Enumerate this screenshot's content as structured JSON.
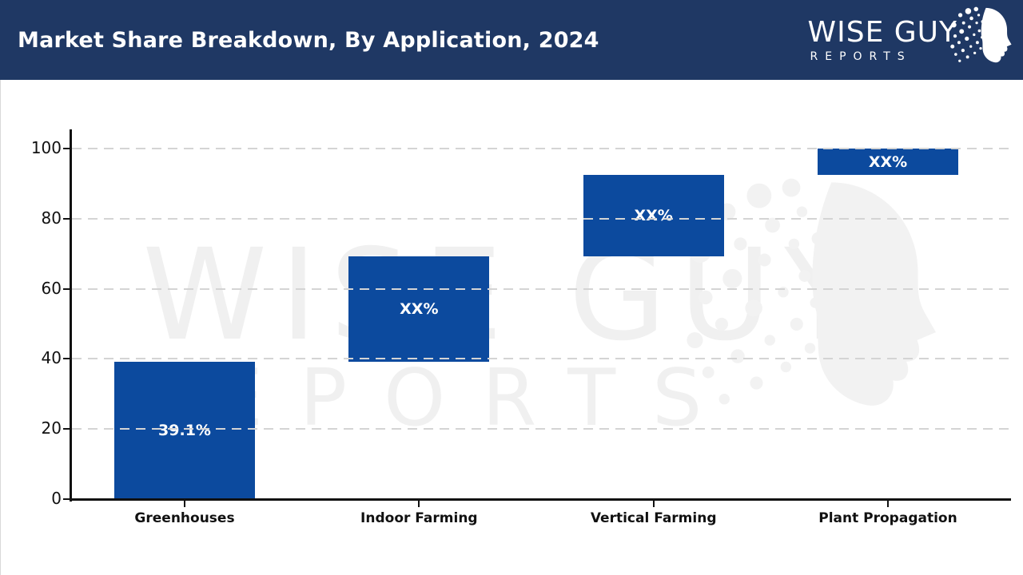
{
  "header": {
    "title": "Market Share Breakdown, By Application, 2024",
    "logo": {
      "wordmark": "WISE GUY",
      "subtext": "REPORTS"
    }
  },
  "watermark": {
    "line1": "WISE GUY",
    "line2": "REPORTS"
  },
  "chart_data": {
    "type": "bar",
    "subtype": "waterfall",
    "title": "Market Share Breakdown, By Application, 2024",
    "categories": [
      "Greenhouses",
      "Indoor Farming",
      "Vertical Farming",
      "Plant Propagation"
    ],
    "segments": [
      {
        "category": "Greenhouses",
        "start": 0,
        "end": 39.1,
        "label": "39.1%"
      },
      {
        "category": "Indoor Farming",
        "start": 39.1,
        "end": 69.2,
        "label": "XX%"
      },
      {
        "category": "Vertical Farming",
        "start": 69.2,
        "end": 92.4,
        "label": "XX%"
      },
      {
        "category": "Plant Propagation",
        "start": 92.4,
        "end": 100,
        "label": "XX%"
      }
    ],
    "segment_sizes_estimated": [
      39.1,
      30.1,
      23.2,
      7.6
    ],
    "xlabel": "",
    "ylabel": "",
    "ylim": [
      0,
      105
    ],
    "yticks": [
      0,
      20,
      40,
      60,
      80,
      100
    ],
    "grid": "horizontal-dashed",
    "legend": "none",
    "colors": {
      "bar": "#0c4a9e",
      "bar_label": "#ffffff",
      "grid": "#d4d4d4",
      "axis": "#111111",
      "tick_label": "#111111",
      "header_bg": "#1f3864",
      "watermark": "#f0f0f0"
    }
  }
}
